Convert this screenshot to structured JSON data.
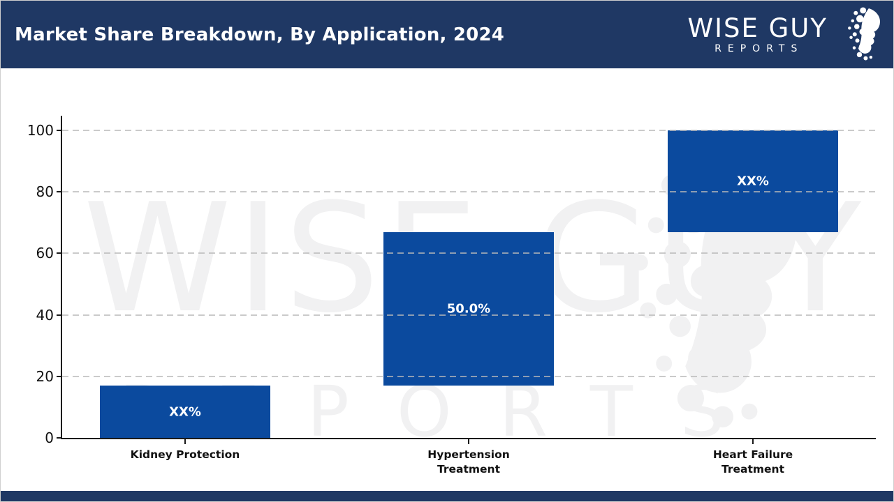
{
  "header": {
    "title": "Market Share Breakdown, By Application, 2024",
    "logo": {
      "brand_line1": "WISE GUY",
      "brand_line2": "REPORTS"
    }
  },
  "watermark": {
    "line1": "WISE GUY",
    "line2": "REPORTS"
  },
  "footer": {},
  "chart_data": {
    "type": "bar",
    "subtype": "waterfall",
    "title": "Market Share Breakdown, By Application, 2024",
    "categories": [
      "Kidney Protection",
      "Hypertension Treatment",
      "Heart Failure Treatment"
    ],
    "category_display": [
      "Kidney Protection",
      "Hypertension\nTreatment",
      "Heart Failure\nTreatment"
    ],
    "series": [
      {
        "name": "Market share (%)",
        "segments": [
          {
            "category": "Kidney Protection",
            "start": 0,
            "end": 17,
            "label": "XX%"
          },
          {
            "category": "Hypertension Treatment",
            "start": 17,
            "end": 67,
            "label": "50.0%"
          },
          {
            "category": "Heart Failure Treatment",
            "start": 67,
            "end": 100,
            "label": "XX%"
          }
        ]
      }
    ],
    "ylim": [
      0,
      100
    ],
    "yticks": [
      0,
      20,
      40,
      60,
      80,
      100
    ],
    "xlabel": "",
    "ylabel": "",
    "grid": "horizontal-dashed",
    "legend": "none",
    "bar_color": "#0b4a9e",
    "bar_label_color": "#ffffff"
  },
  "colors": {
    "header_bg": "#1f3864",
    "footer_bg": "#1f3864",
    "bar": "#0b4a9e",
    "grid": "#b9b9b9",
    "axis": "#1a1a1a",
    "watermark": "#f1f1f2",
    "page_bg": "#ffffff"
  }
}
